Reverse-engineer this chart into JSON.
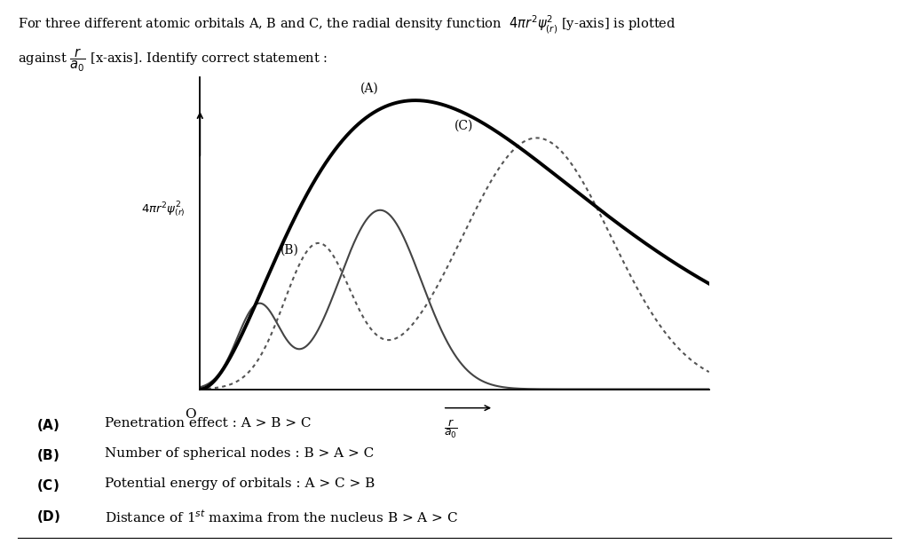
{
  "background_color": "#ffffff",
  "curve_A_color": "#000000",
  "curve_B_color": "#444444",
  "curve_C_color": "#555555",
  "curve_A_lw": 2.8,
  "curve_B_lw": 1.5,
  "curve_C_lw": 1.5,
  "xmax": 13,
  "ymax": 1.08,
  "label_A": "(A)",
  "label_B": "(B)",
  "label_C": "(C)",
  "ylabel_text": "4πr²ψ²(r)",
  "origin_label": "O",
  "xlabel_label": "r/a₀"
}
